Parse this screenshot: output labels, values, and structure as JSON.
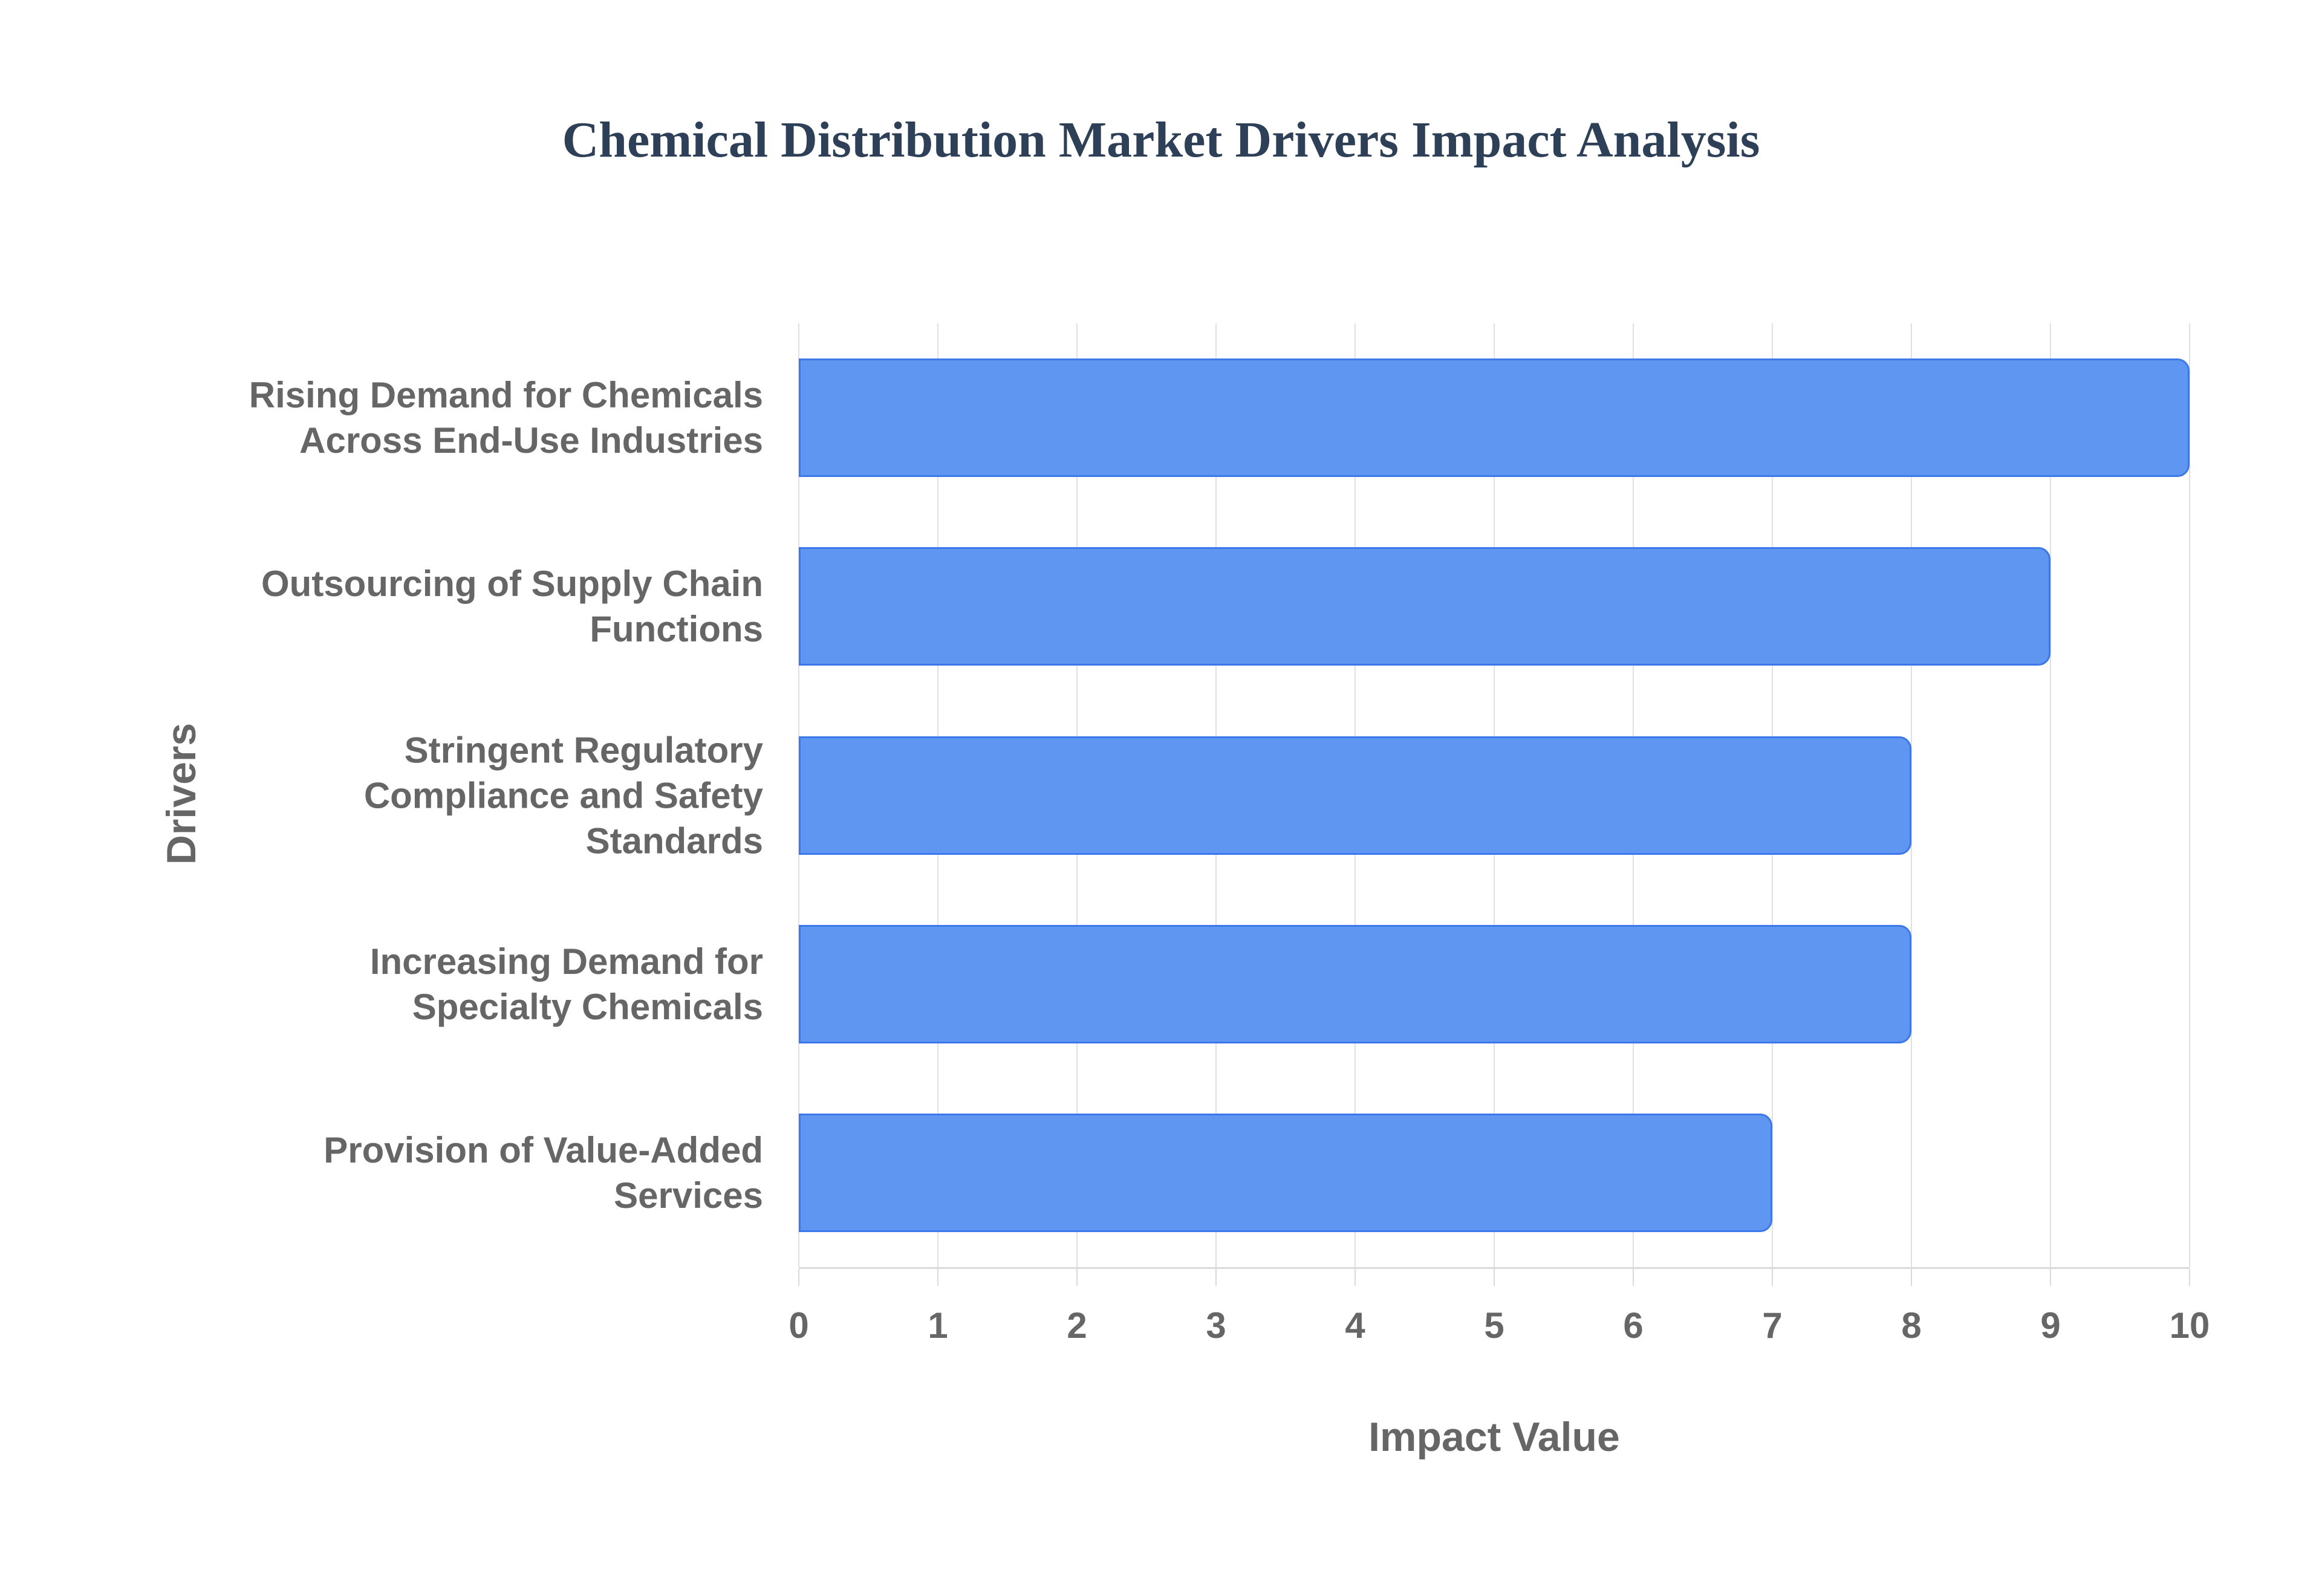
{
  "title": {
    "text": "Chemical Distribution Market Drivers Impact Analysis",
    "color": "#2e4057"
  },
  "chart_data": {
    "type": "bar",
    "orientation": "horizontal",
    "title": "Chemical Distribution Market Drivers Impact Analysis",
    "xlabel": "Impact Value",
    "ylabel": "Drivers",
    "categories": [
      "Rising Demand for Chemicals Across End-Use Industries",
      "Outsourcing of Supply Chain Functions",
      "Stringent Regulatory Compliance and Safety Standards",
      "Increasing Demand for Specialty Chemicals",
      "Provision of Value-Added Services"
    ],
    "category_wrapped_lines": [
      [
        "Rising Demand for Chemicals",
        "Across End-Use Industries"
      ],
      [
        "Outsourcing of Supply Chain",
        "Functions"
      ],
      [
        "Stringent Regulatory",
        "Compliance and Safety",
        "Standards"
      ],
      [
        "Increasing Demand for",
        "Specialty Chemicals"
      ],
      [
        "Provision of Value-Added",
        "Services"
      ]
    ],
    "values": [
      10,
      9,
      8,
      8,
      7
    ],
    "xlim": [
      0,
      10
    ],
    "xticks": [
      0,
      1,
      2,
      3,
      4,
      5,
      6,
      7,
      8,
      9,
      10
    ],
    "grid": true,
    "legend_position": "none",
    "colors": {
      "bar_fill": "#5E96F2",
      "bar_border": "#3C78E9",
      "gridline": "#e0e0e0",
      "axis_line": "#dadada",
      "label_gray": "#666666",
      "title_navy": "#2e4057",
      "background": "#ffffff"
    }
  }
}
